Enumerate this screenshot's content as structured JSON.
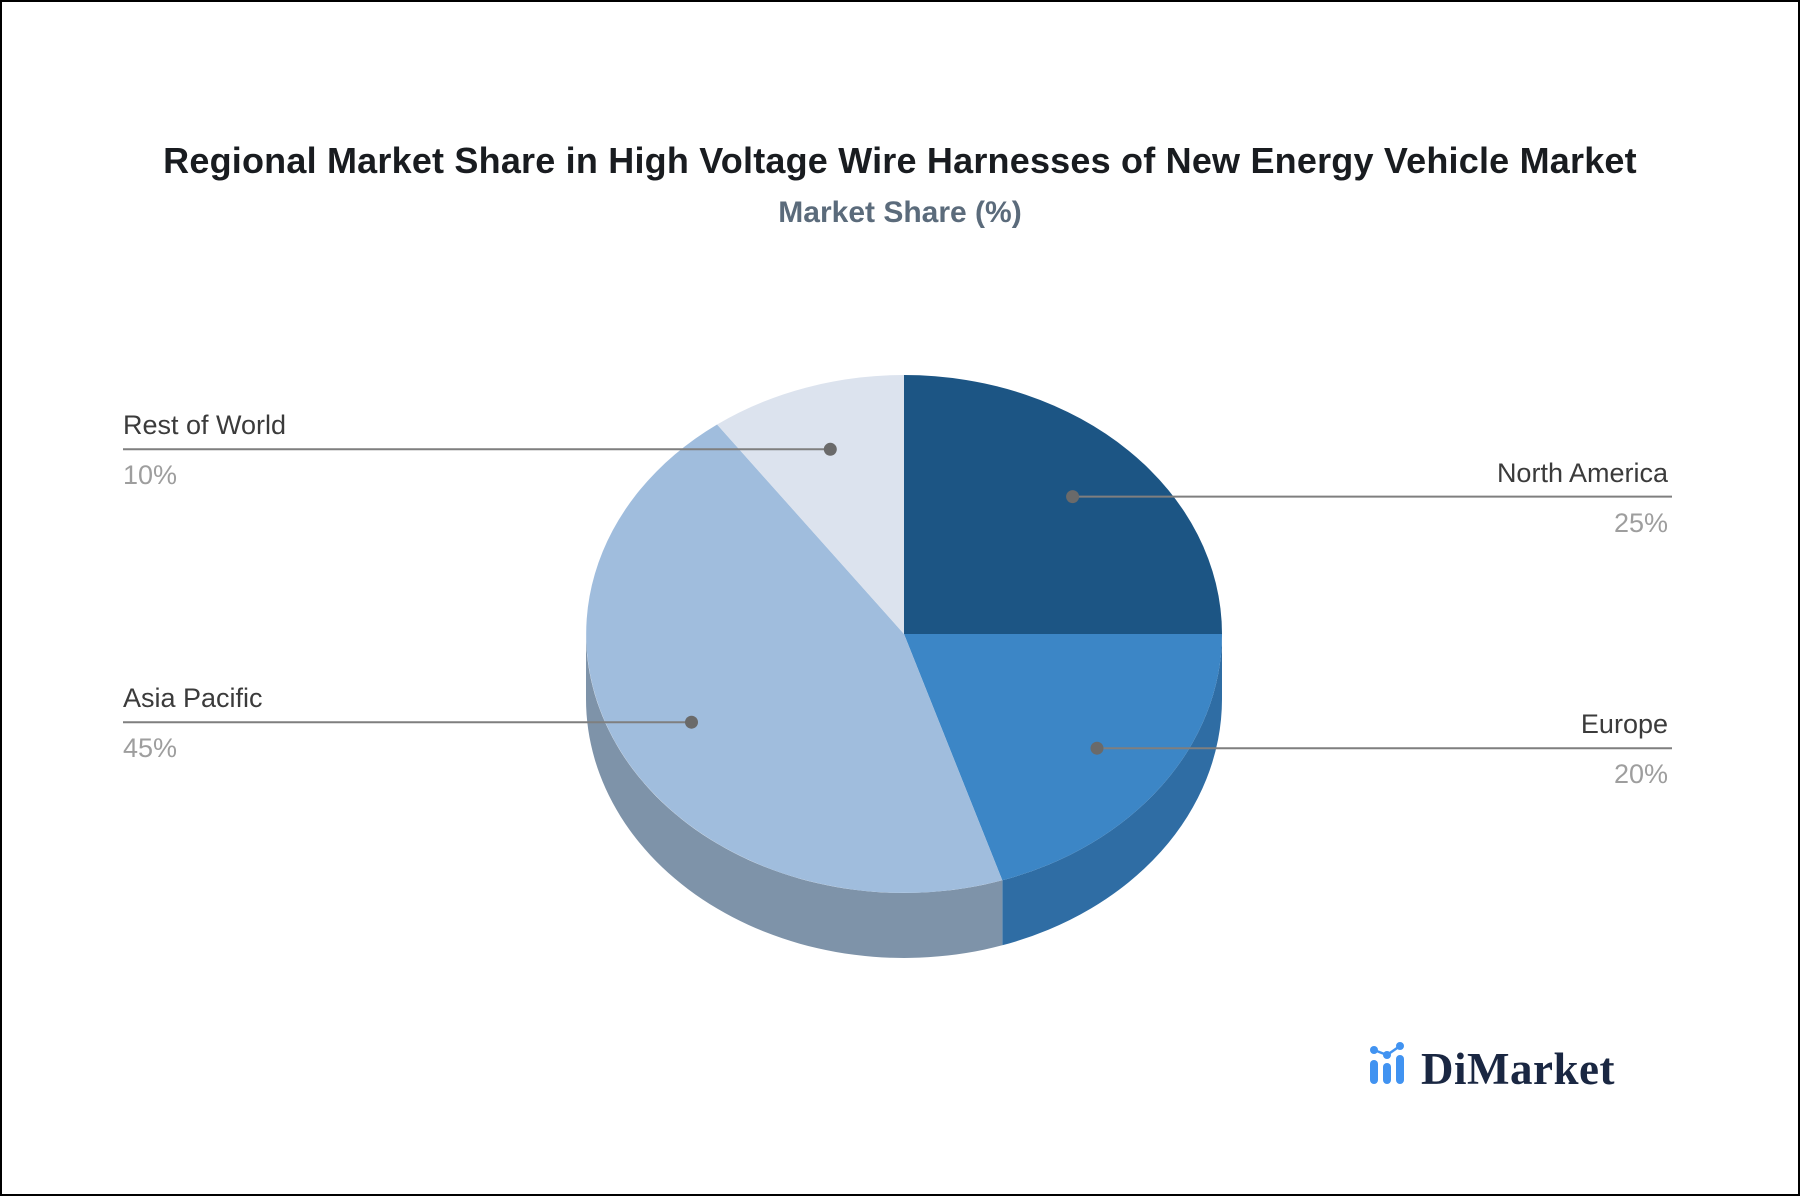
{
  "page": {
    "background": "#ffffff",
    "border_color": "#000000"
  },
  "chart_data": {
    "type": "pie",
    "style": "3d",
    "title": "Regional Market Share in High Voltage Wire Harnesses of New Energy Vehicle Market",
    "subtitle": "Market Share (%)",
    "unit": "%",
    "direction": "clockwise",
    "start_angle_deg": 0,
    "legend_position": "callout-labels",
    "slices": [
      {
        "label": "North America",
        "value": 25,
        "value_label": "25%",
        "color": "#1c5584",
        "side_color": "#174569",
        "callout_side": "right"
      },
      {
        "label": "Europe",
        "value": 20,
        "value_label": "20%",
        "color": "#3c86c6",
        "side_color": "#2f6da4",
        "callout_side": "right"
      },
      {
        "label": "Asia Pacific",
        "value": 45,
        "value_label": "45%",
        "color": "#a0bddd",
        "side_color": "#7e93a9",
        "callout_side": "left"
      },
      {
        "label": "Rest of World",
        "value": 10,
        "value_label": "10%",
        "color": "#dce3ee",
        "side_color": "#b9c3d3",
        "callout_side": "left"
      }
    ],
    "colors": {
      "title": "#191c20",
      "subtitle": "#5b6b7b",
      "callout_line": "#7f7f7f",
      "callout_dot": "#6a6a6a",
      "label_text": "#3b3b3b",
      "value_text": "#9e9e9e"
    }
  },
  "logo": {
    "text": "DiMarket",
    "icon": "bar-line-chart-icon",
    "icon_color": "#4193f1",
    "text_color": "#1a2742"
  }
}
